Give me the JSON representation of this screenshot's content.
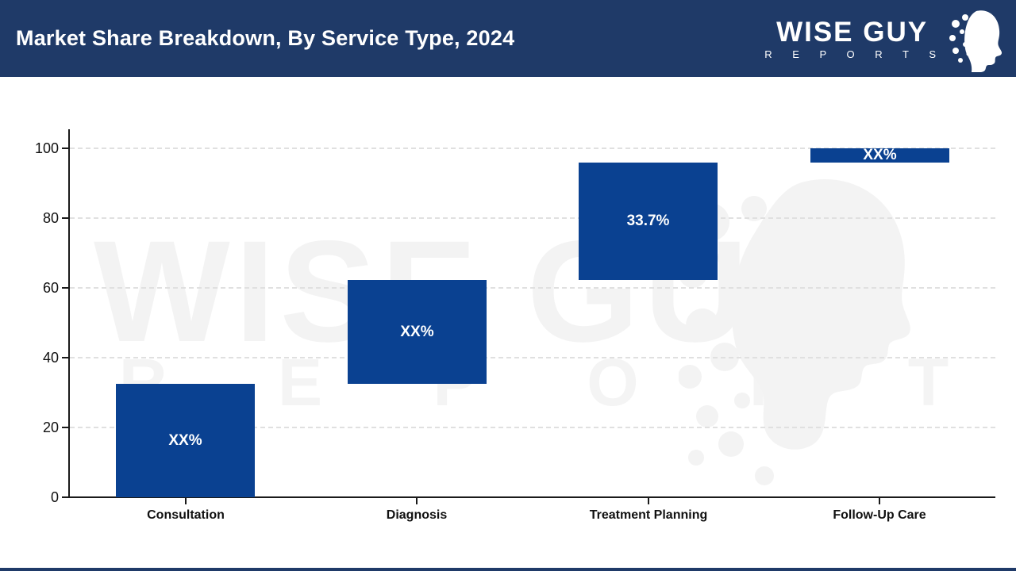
{
  "header": {
    "title": "Market Share Breakdown, By Service Type, 2024",
    "bg_color": "#1f3a68",
    "logo": {
      "line1": "WISE GUY",
      "line2": "R E P O R T S"
    }
  },
  "watermark": {
    "line1": "WISE GUY",
    "line2": "R E P O R T S"
  },
  "chart_data": {
    "type": "bar",
    "variant": "waterfall",
    "title": "Market Share Breakdown, By Service Type, 2024",
    "categories": [
      "Consultation",
      "Diagnosis",
      "Treatment Planning",
      "Follow-Up Care"
    ],
    "segments": [
      {
        "category": "Consultation",
        "start": 0,
        "end": 32.4,
        "label": "XX%"
      },
      {
        "category": "Diagnosis",
        "start": 32.4,
        "end": 62.2,
        "label": "XX%"
      },
      {
        "category": "Treatment Planning",
        "start": 62.2,
        "end": 95.9,
        "label": "33.7%"
      },
      {
        "category": "Follow-Up Care",
        "start": 95.9,
        "end": 100,
        "label": "XX%"
      }
    ],
    "ylim": [
      0,
      100
    ],
    "yticks": [
      0,
      20,
      40,
      60,
      80,
      100
    ],
    "xlabel": "",
    "ylabel": "",
    "grid": "horizontal-dashed",
    "legend": "none",
    "bar_color": "#0a4191",
    "label_color": "#ffffff",
    "axis_color": "#1a1a1a"
  }
}
